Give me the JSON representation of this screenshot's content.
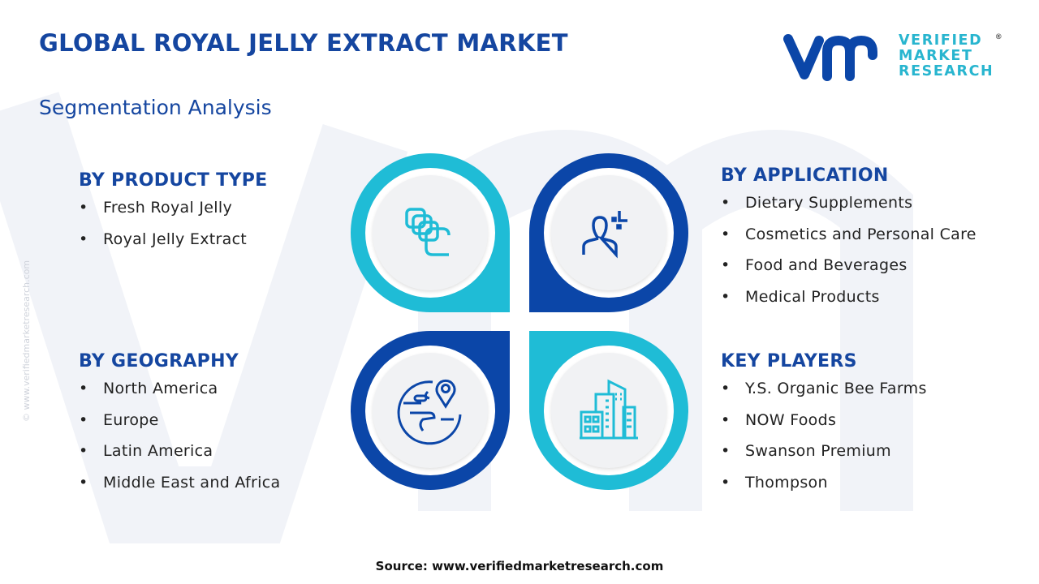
{
  "header": {
    "title": "GLOBAL ROYAL JELLY EXTRACT MARKET",
    "subtitle": "Segmentation Analysis"
  },
  "logo": {
    "mark": "vmr",
    "lines": [
      "VERIFIED",
      "MARKET",
      "RESEARCH"
    ],
    "registered": "®"
  },
  "side_text": "© www.verifiedmarketresearch.com",
  "colors": {
    "primary": "#1546a0",
    "cyan": "#1fbcd6",
    "dark_blue": "#0b46a8"
  },
  "segments": {
    "product_type": {
      "title": "BY PRODUCT TYPE",
      "icon": "layers-icon",
      "items": [
        "Fresh Royal Jelly",
        "Royal Jelly Extract"
      ]
    },
    "application": {
      "title": "BY APPLICATION",
      "icon": "user-icon",
      "items": [
        "Dietary Supplements",
        "Cosmetics and Personal Care",
        "Food and Beverages",
        "Medical Products"
      ]
    },
    "geography": {
      "title": "BY GEOGRAPHY",
      "icon": "globe-pin-icon",
      "items": [
        "North America",
        "Europe",
        "Latin America",
        "Middle East and Africa"
      ]
    },
    "key_players": {
      "title": "KEY PLAYERS",
      "icon": "buildings-icon",
      "items": [
        "Y.S. Organic Bee Farms",
        "NOW Foods",
        "Swanson Premium",
        "Thompson"
      ]
    }
  },
  "footer": {
    "source": "Source: www.verifiedmarketresearch.com"
  }
}
